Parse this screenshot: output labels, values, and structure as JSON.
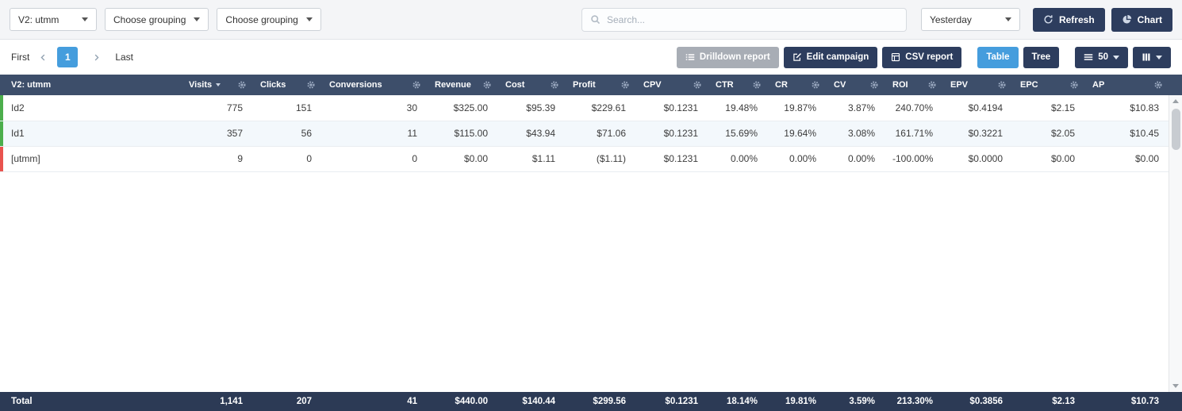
{
  "toolbar": {
    "campaign_select": "V2: utmm",
    "grouping_select_1": "Choose grouping",
    "grouping_select_2": "Choose grouping",
    "search_placeholder": "Search...",
    "date_range": "Yesterday",
    "refresh": "Refresh",
    "chart": "Chart"
  },
  "pagination": {
    "first": "First",
    "current_page": "1",
    "last": "Last"
  },
  "actions": {
    "drilldown": "Drilldown report",
    "edit_campaign": "Edit campaign",
    "csv": "CSV report",
    "table_view": "Table",
    "tree_view": "Tree",
    "rows_per_page": "50"
  },
  "table": {
    "name_header": "V2: utmm",
    "sorted_column": "Visits",
    "columns": [
      "Visits",
      "Clicks",
      "Conversions",
      "Revenue",
      "Cost",
      "Profit",
      "CPV",
      "CTR",
      "CR",
      "CV",
      "ROI",
      "EPV",
      "EPC",
      "AP"
    ],
    "rows": [
      {
        "status": "green",
        "name": "Id2",
        "values": [
          "775",
          "151",
          "30",
          "$325.00",
          "$95.39",
          "$229.61",
          "$0.1231",
          "19.48%",
          "19.87%",
          "3.87%",
          "240.70%",
          "$0.4194",
          "$2.15",
          "$10.83"
        ],
        "profit_color": "green",
        "roi_color": "green"
      },
      {
        "status": "green",
        "name": "Id1",
        "values": [
          "357",
          "56",
          "11",
          "$115.00",
          "$43.94",
          "$71.06",
          "$0.1231",
          "15.69%",
          "19.64%",
          "3.08%",
          "161.71%",
          "$0.3221",
          "$2.05",
          "$10.45"
        ],
        "profit_color": "green",
        "roi_color": "green"
      },
      {
        "status": "red",
        "name": "[utmm]",
        "values": [
          "9",
          "0",
          "0",
          "$0.00",
          "$1.11",
          "($1.11)",
          "$0.1231",
          "0.00%",
          "0.00%",
          "0.00%",
          "-100.00%",
          "$0.0000",
          "$0.00",
          "$0.00"
        ],
        "profit_color": "red",
        "roi_color": "red"
      }
    ],
    "total": {
      "label": "Total",
      "values": [
        "1,141",
        "207",
        "41",
        "$440.00",
        "$140.44",
        "$299.56",
        "$0.1231",
        "18.14%",
        "19.81%",
        "3.59%",
        "213.30%",
        "$0.3856",
        "$2.13",
        "$10.73"
      ]
    }
  },
  "colors": {
    "navy_button": "#2d3d5e",
    "active_blue": "#459ddd",
    "header_bg": "#3d4e6a",
    "total_bg": "#2c3a55",
    "positive_green": "#2fa148",
    "negative_red": "#ef4f4a"
  }
}
